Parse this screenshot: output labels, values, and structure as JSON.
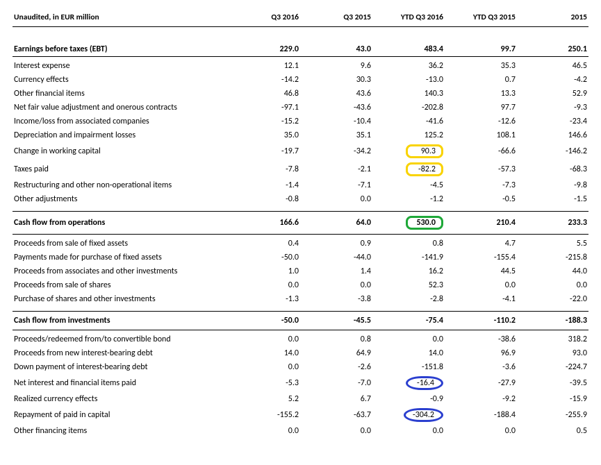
{
  "header": {
    "caption": "Unaudited, in EUR million",
    "columns": [
      "Q3 2016",
      "Q3 2015",
      "YTD Q3 2016",
      "YTD Q3 2015",
      "2015"
    ]
  },
  "rows": [
    {
      "label": "Earnings before taxes (EBT)",
      "v": [
        "229.0",
        "43.0",
        "483.4",
        "99.7",
        "250.1"
      ],
      "bold": true,
      "spacer_before": true
    },
    {
      "label": "Interest expense",
      "v": [
        "12.1",
        "9.6",
        "36.2",
        "35.3",
        "46.5"
      ],
      "section_top": true
    },
    {
      "label": "Currency effects",
      "v": [
        "-14.2",
        "30.3",
        "-13.0",
        "0.7",
        "-4.2"
      ]
    },
    {
      "label": "Other financial items",
      "v": [
        "46.8",
        "43.6",
        "140.3",
        "13.3",
        "52.9"
      ]
    },
    {
      "label": "Net fair value adjustment and onerous contracts",
      "v": [
        "-97.1",
        "-43.6",
        "-202.8",
        "97.7",
        "-9.3"
      ]
    },
    {
      "label": "Income/loss from associated companies",
      "v": [
        "-15.2",
        "-10.4",
        "-41.6",
        "-12.6",
        "-23.4"
      ]
    },
    {
      "label": "Depreciation and impairment losses",
      "v": [
        "35.0",
        "35.1",
        "125.2",
        "108.1",
        "146.6"
      ]
    },
    {
      "label": "Change in working capital",
      "v": [
        "-19.7",
        "-34.2",
        "90.3",
        "-66.6",
        "-146.2"
      ],
      "highlight": {
        "col": 2,
        "class": "hl-yellow"
      }
    },
    {
      "label": "Taxes paid",
      "v": [
        "-7.8",
        "-2.1",
        "-82.2",
        "-57.3",
        "-68.3"
      ],
      "highlight": {
        "col": 2,
        "class": "hl-yellow"
      }
    },
    {
      "label": "Restructuring and other non-operational items",
      "v": [
        "-1.4",
        "-7.1",
        "-4.5",
        "-7.3",
        "-9.8"
      ]
    },
    {
      "label": "Other adjustments",
      "v": [
        "-0.8",
        "0.0",
        "-1.2",
        "-0.5",
        "-1.5"
      ],
      "pre_total": true
    },
    {
      "label": "Cash flow from operations",
      "v": [
        "166.6",
        "64.0",
        "530.0",
        "210.4",
        "233.3"
      ],
      "total": true,
      "highlight": {
        "col": 2,
        "class": "hl-green"
      }
    },
    {
      "label": "Proceeds from sale of fixed assets",
      "v": [
        "0.4",
        "0.9",
        "0.8",
        "4.7",
        "5.5"
      ],
      "section_top": true
    },
    {
      "label": "Payments made for purchase of fixed assets",
      "v": [
        "-50.0",
        "-44.0",
        "-141.9",
        "-155.4",
        "-215.8"
      ]
    },
    {
      "label": "Proceeds from associates and other investments",
      "v": [
        "1.0",
        "1.4",
        "16.2",
        "44.5",
        "44.0"
      ]
    },
    {
      "label": "Proceeds from sale of shares",
      "v": [
        "0.0",
        "0.0",
        "52.3",
        "0.0",
        "0.0"
      ]
    },
    {
      "label": "Purchase of shares and other investments",
      "v": [
        "-1.3",
        "-3.8",
        "-2.8",
        "-4.1",
        "-22.0"
      ],
      "pre_total": true
    },
    {
      "label": "Cash flow from investments",
      "v": [
        "-50.0",
        "-45.5",
        "-75.4",
        "-110.2",
        "-188.3"
      ],
      "total": true
    },
    {
      "label": "Proceeds/redeemed from/to convertible bond",
      "v": [
        "0.0",
        "0.8",
        "0.0",
        "-38.6",
        "318.2"
      ],
      "section_top": true
    },
    {
      "label": "Proceeds from new interest-bearing debt",
      "v": [
        "14.0",
        "64.9",
        "14.0",
        "96.9",
        "93.0"
      ]
    },
    {
      "label": "Down payment of interest-bearing debt",
      "v": [
        "0.0",
        "-2.6",
        "-151.8",
        "-3.6",
        "-224.7"
      ]
    },
    {
      "label": "Net interest and financial items paid",
      "v": [
        "-5.3",
        "-7.0",
        "-16.4",
        "-27.9",
        "-39.5"
      ],
      "highlight": {
        "col": 2,
        "class": "hl-blue"
      }
    },
    {
      "label": "Realized currency effects",
      "v": [
        "5.2",
        "6.7",
        "-0.9",
        "-9.2",
        "-15.9"
      ]
    },
    {
      "label": "Repayment of paid in capital",
      "v": [
        "-155.2",
        "-63.7",
        "-304.2",
        "-188.4",
        "-255.9"
      ],
      "highlight": {
        "col": 2,
        "class": "hl-blue"
      }
    },
    {
      "label": "Other financing items",
      "v": [
        "0.0",
        "0.0",
        "0.0",
        "0.0",
        "0.5"
      ]
    }
  ],
  "highlight_colors": {
    "yellow": "#f9d300",
    "green": "#1ea838",
    "blue": "#2b3fcf"
  }
}
